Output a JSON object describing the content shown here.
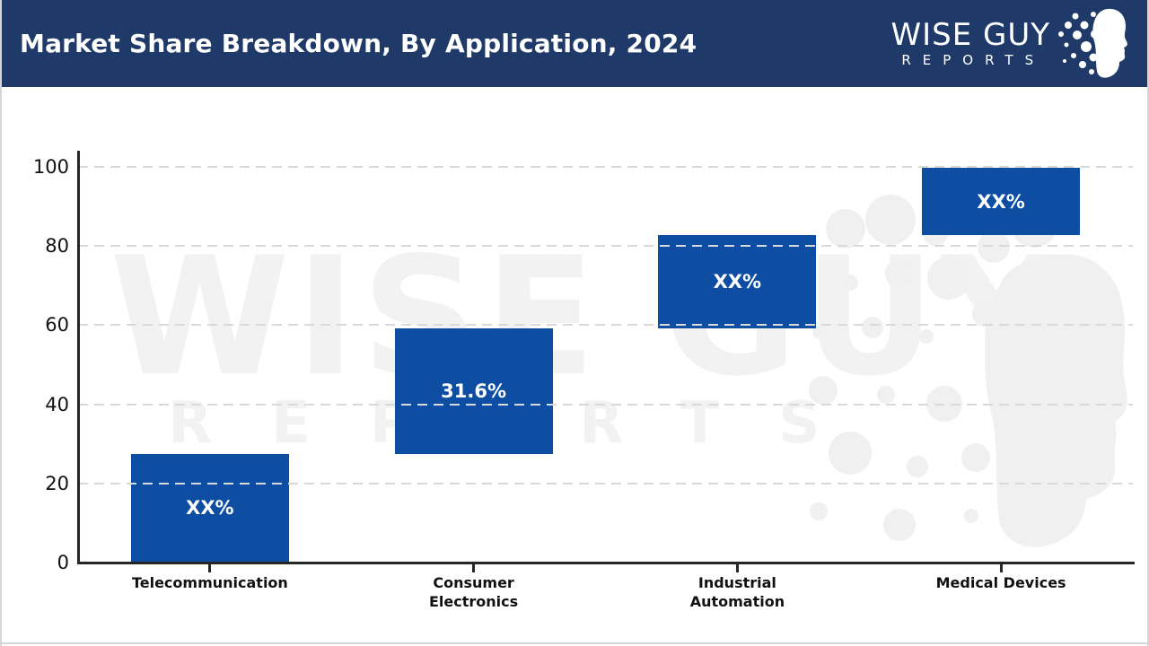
{
  "header": {
    "title": "Market Share Breakdown, By Application, 2024",
    "bg_color": "#1f3a68",
    "logo": {
      "line1": "WISE GUY",
      "line2": "REPORTS"
    }
  },
  "watermark": {
    "line1": "WISE GUY",
    "line2": "REPORTS"
  },
  "colors": {
    "header_bg": "#1f3a68",
    "bar_blue": "#0d4da2",
    "watermark_gray": "#f2f2f2",
    "axis": "#262626",
    "gridline": "#d9d9d9"
  },
  "chart_data": {
    "type": "bar",
    "variant": "waterfall-range",
    "title": "Market Share Breakdown, By Application, 2024",
    "categories": [
      "Telecommunication",
      "Consumer\nElectronics",
      "Industrial\nAutomation",
      "Medical Devices"
    ],
    "bars": [
      {
        "category": "Telecommunication",
        "start": 0,
        "end": 27.5,
        "label": "XX%"
      },
      {
        "category": "Consumer Electronics",
        "start": 27.5,
        "end": 59.1,
        "label": "31.6%"
      },
      {
        "category": "Industrial Automation",
        "start": 59.1,
        "end": 82.8,
        "label": "XX%"
      },
      {
        "category": "Medical Devices",
        "start": 82.8,
        "end": 99.7,
        "label": "XX%"
      }
    ],
    "ylim": [
      0,
      100
    ],
    "yticks": [
      0,
      20,
      40,
      60,
      80,
      100
    ],
    "grid": {
      "axis": "y",
      "style": "dashed",
      "color": "#d9d9d9",
      "above_bars": true
    },
    "bar_color": "#0d4da2",
    "bar_label_color": "#ffffff",
    "legend": "none",
    "xlabel": "",
    "ylabel": ""
  }
}
